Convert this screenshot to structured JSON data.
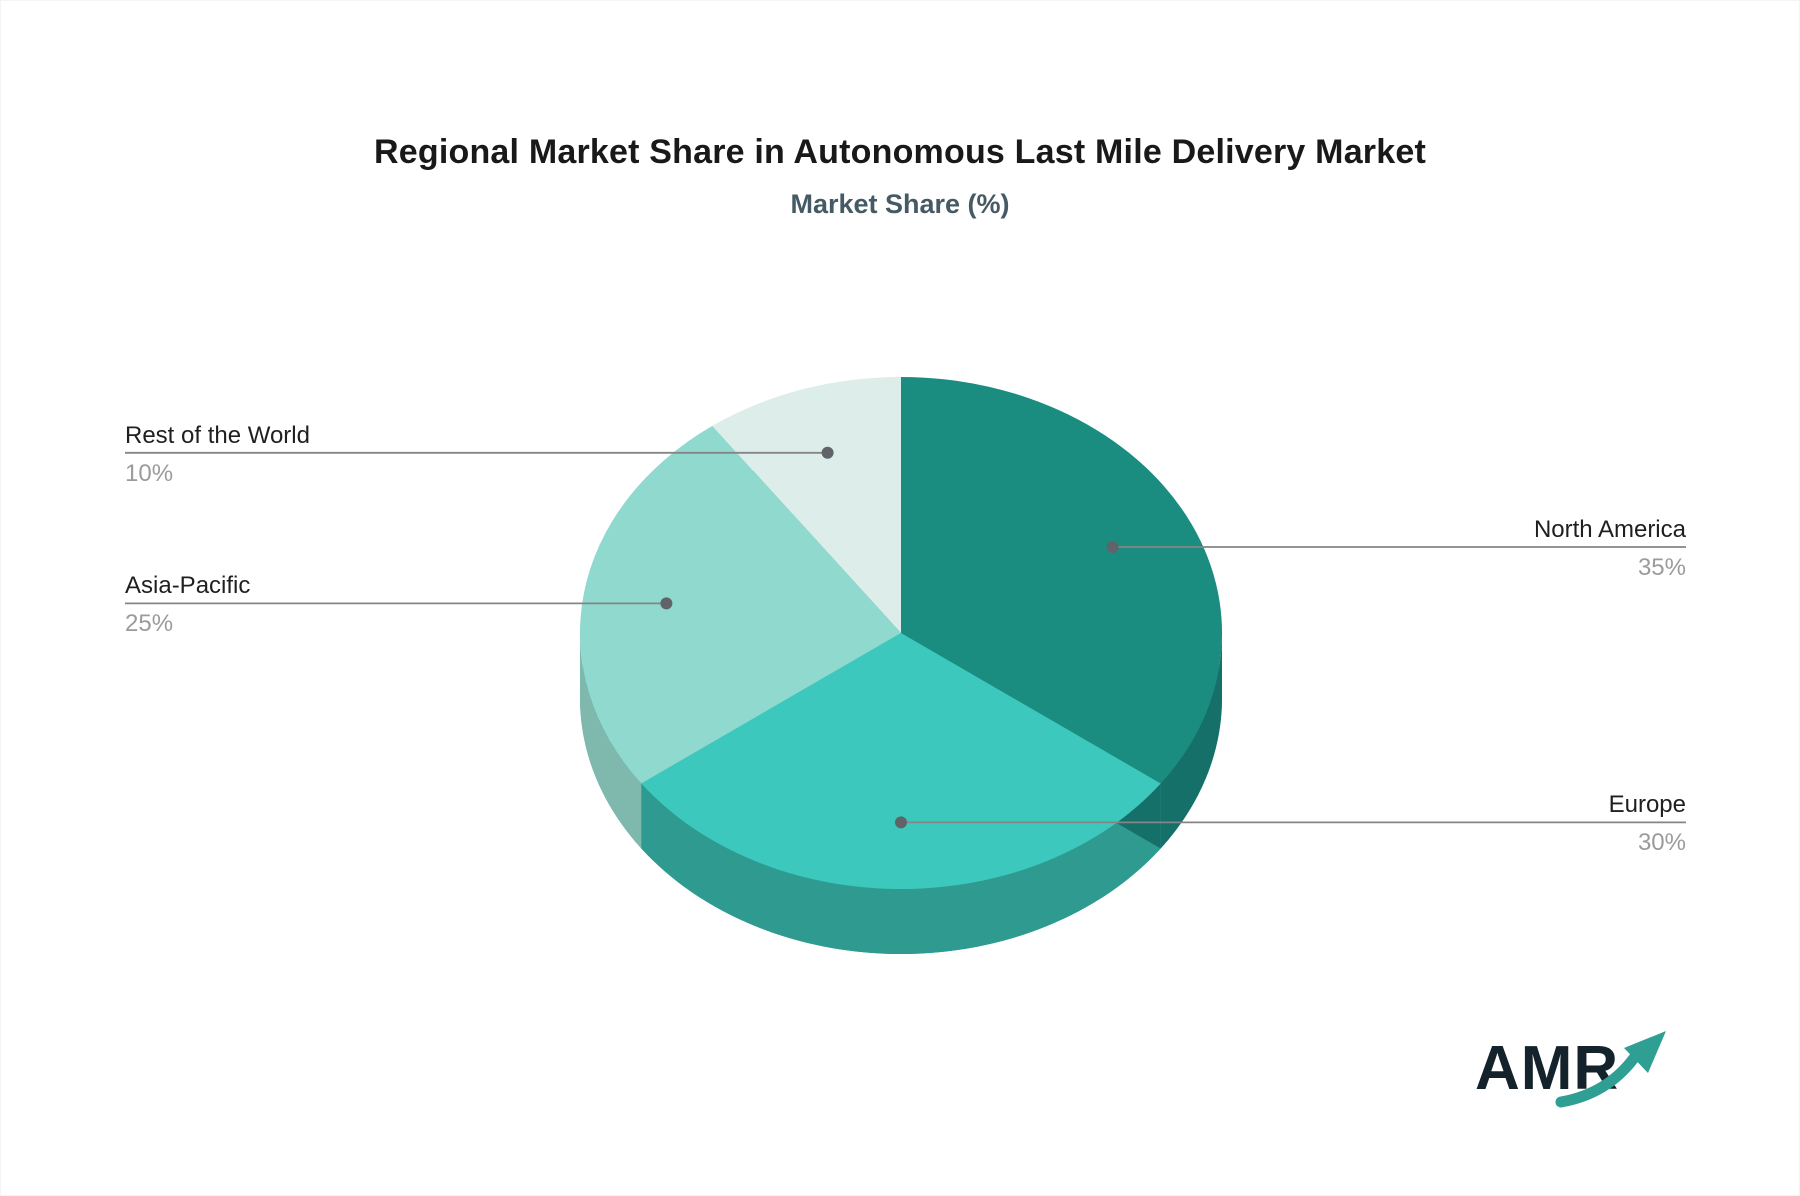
{
  "page": {
    "background": "#ffffff"
  },
  "header": {
    "title": "Regional Market Share in Autonomous Last Mile Delivery Market",
    "subtitle": "Market Share (%)"
  },
  "chart_data": {
    "type": "pie",
    "title": "Regional Market Share in Autonomous Last Mile Delivery Market",
    "subtitle": "Market Share (%)",
    "unit": "%",
    "style": "3d",
    "direction": "clockwise",
    "start_angle_deg": 0,
    "legend": "none",
    "slices": [
      {
        "label": "North America",
        "value": 35,
        "pct_label": "35%",
        "color": "#1a8c80",
        "side_color": "#15706a",
        "callout_side": "right"
      },
      {
        "label": "Europe",
        "value": 30,
        "pct_label": "30%",
        "color": "#3cc8bd",
        "side_color": "#2e9a90",
        "callout_side": "right"
      },
      {
        "label": "Asia-Pacific",
        "value": 25,
        "pct_label": "25%",
        "color": "#8fd9cf",
        "side_color": "#7fb9ae",
        "callout_side": "left"
      },
      {
        "label": "Rest of the World",
        "value": 10,
        "pct_label": "10%",
        "color": "#dcedea",
        "side_color": "#b8d8d2",
        "callout_side": "left"
      }
    ],
    "label_color": "#1f1f1f",
    "pct_color": "#9b9b9b",
    "line_color": "#858585",
    "dot_color": "#606468"
  },
  "logo": {
    "text": "AMR",
    "text_color": "#14222b",
    "arrow_color": "#2f9f93"
  }
}
